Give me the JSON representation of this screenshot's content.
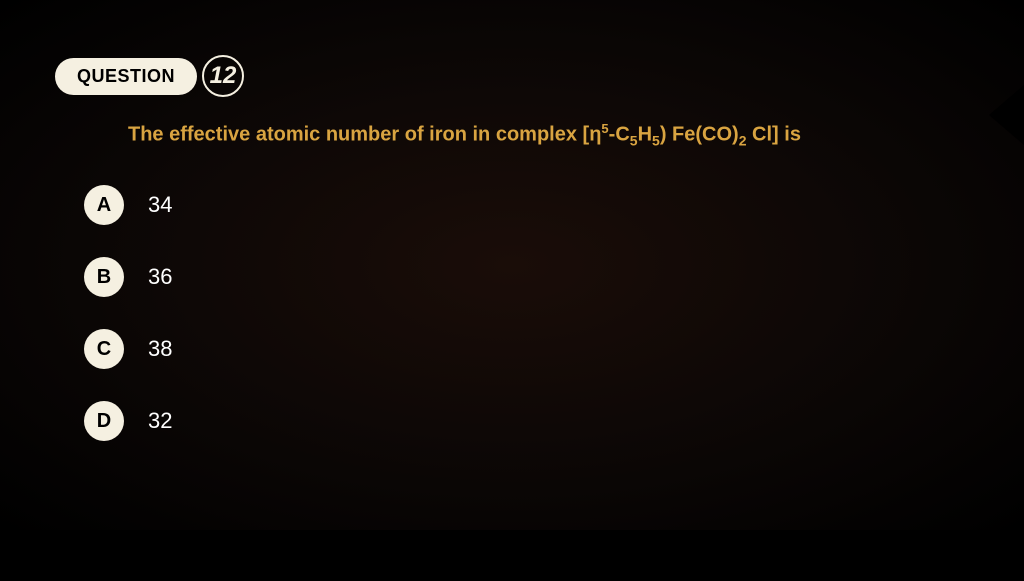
{
  "header": {
    "label": "QUESTION",
    "number": "12"
  },
  "question": {
    "prefix": "The effective atomic number of iron in complex [η",
    "sup1": "5",
    "mid1": "-C",
    "sub1": "5",
    "mid2": "H",
    "sub2": "5",
    "mid3": ") Fe(CO)",
    "sub3": "2",
    "suffix": " Cl] is"
  },
  "options": [
    {
      "letter": "A",
      "text": "34"
    },
    {
      "letter": "B",
      "text": "36"
    },
    {
      "letter": "C",
      "text": "38"
    },
    {
      "letter": "D",
      "text": "32"
    }
  ],
  "colors": {
    "background": "#000000",
    "content_gradient_center": "#1a0d08",
    "pill_bg": "#f5f0e1",
    "question_text": "#d9a441",
    "option_text": "#ffffff"
  }
}
